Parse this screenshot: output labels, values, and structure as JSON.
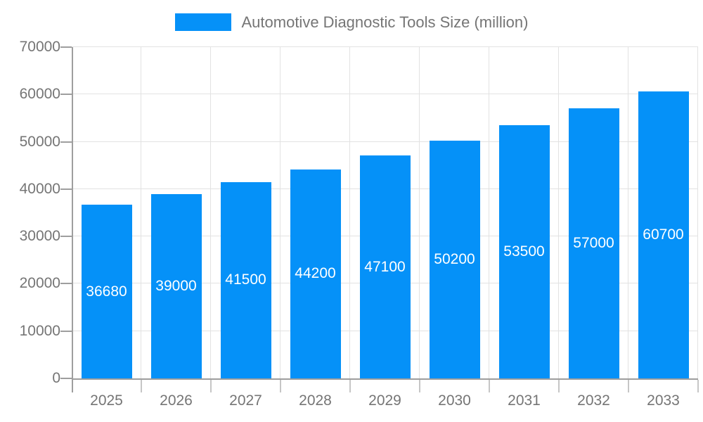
{
  "chart_data": {
    "type": "bar",
    "title": "Automotive Diagnostic Tools Size (million)",
    "categories": [
      "2025",
      "2026",
      "2027",
      "2028",
      "2029",
      "2030",
      "2031",
      "2032",
      "2033"
    ],
    "series": [
      {
        "name": "Automotive Diagnostic Tools Size (million)",
        "values": [
          36680,
          39000,
          41500,
          44200,
          47100,
          50200,
          53500,
          57000,
          60700
        ],
        "value_labels": [
          "36680",
          "39000",
          "41500",
          "44200",
          "47100",
          "50200",
          "53500",
          "57000",
          "60700"
        ]
      }
    ],
    "xlabel": "",
    "ylabel": "",
    "ylim": [
      0,
      70000
    ],
    "ytick_step": 10000,
    "yticks": [
      "0",
      "10000",
      "20000",
      "30000",
      "40000",
      "50000",
      "60000",
      "70000"
    ],
    "legend_position": "top",
    "grid": true,
    "value_labels_position": "inside-center",
    "colors": {
      "bar": "#0591F8",
      "axis": "#9E9E9E",
      "grid": "#E2E2E2",
      "tick": "#C6C6C6",
      "axis_text": "#757575",
      "legend_text": "#757575",
      "value_label_text": "#FFFFFF",
      "background": "#FFFFFF"
    }
  }
}
